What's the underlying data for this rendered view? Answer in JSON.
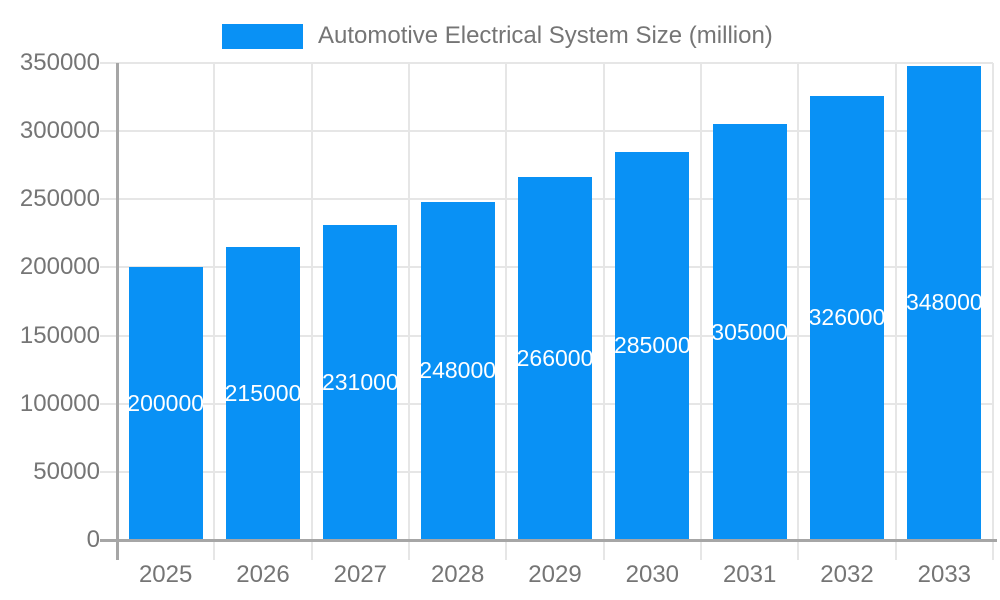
{
  "legend": {
    "label": "Automotive Electrical System Size (million)",
    "swatch_color": "#0991f5"
  },
  "chart_data": {
    "type": "bar",
    "title": "",
    "series_name": "Automotive Electrical System Size (million)",
    "categories": [
      "2025",
      "2026",
      "2027",
      "2028",
      "2029",
      "2030",
      "2031",
      "2032",
      "2033"
    ],
    "values": [
      200000,
      215000,
      231000,
      248000,
      266000,
      285000,
      305000,
      326000,
      348000
    ],
    "xlabel": "",
    "ylabel": "",
    "ylim": [
      0,
      350000
    ],
    "yticks": [
      0,
      50000,
      100000,
      150000,
      200000,
      250000,
      300000,
      350000
    ],
    "grid": true,
    "legend_position": "top",
    "value_labels": "inside-center-white"
  },
  "colors": {
    "bar": "#0991f5",
    "axis_text": "#757575",
    "gridline": "#e6e6e6",
    "axis_line": "#a6a6a6",
    "value_label_text": "#ffffff",
    "background": "#ffffff"
  }
}
